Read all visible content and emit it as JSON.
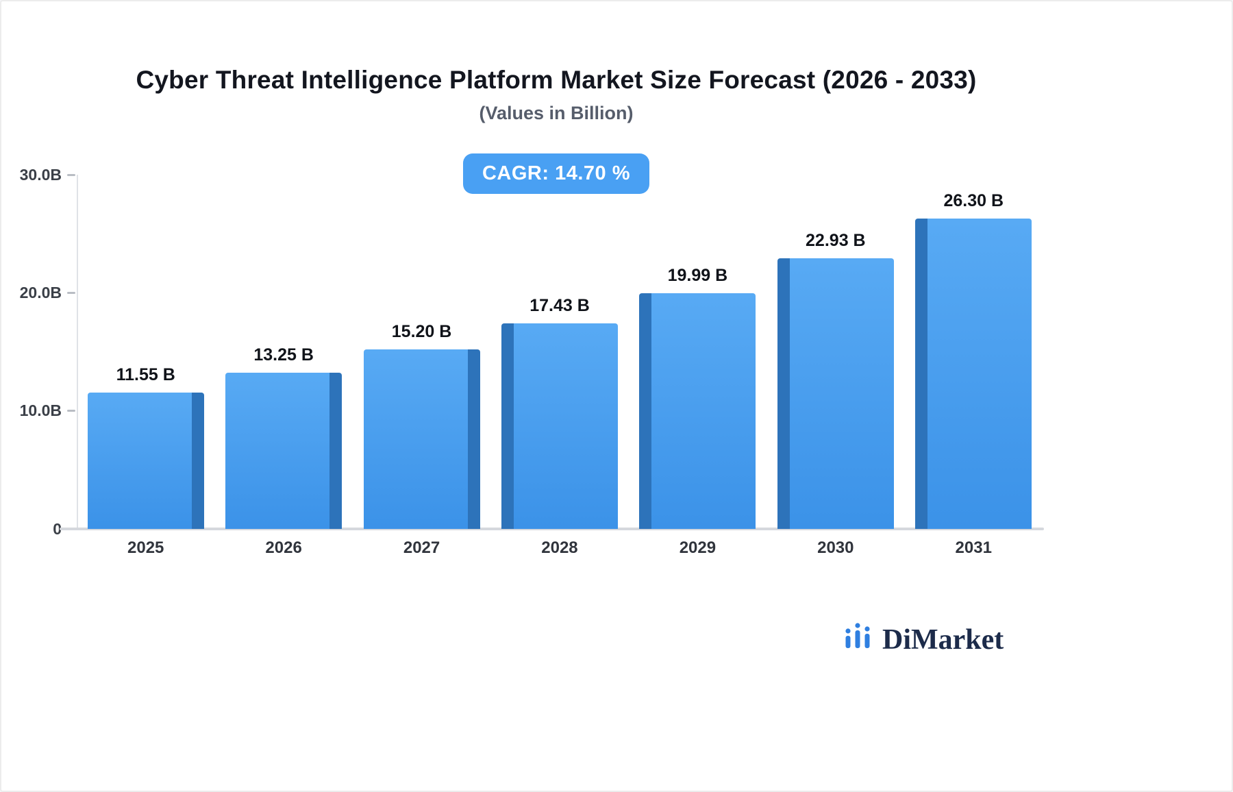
{
  "chart_data": {
    "type": "bar",
    "title": "Cyber Threat Intelligence Platform Market Size Forecast (2026 - 2033)",
    "subtitle": "(Values in Billion)",
    "badge_label": "CAGR: 14.70 %",
    "categories": [
      "2025",
      "2026",
      "2027",
      "2028",
      "2029",
      "2030",
      "2031"
    ],
    "values": [
      11.55,
      13.25,
      15.2,
      17.43,
      19.99,
      22.93,
      26.3
    ],
    "value_labels": [
      "11.55 B",
      "13.25 B",
      "15.20 B",
      "17.43 B",
      "19.99 B",
      "22.93 B",
      "26.30 B"
    ],
    "xlabel": "",
    "ylabel": "",
    "ylim": [
      0,
      30
    ],
    "yticks": [
      {
        "value": 30,
        "label": "30.0B"
      },
      {
        "value": 20,
        "label": "20.0B"
      },
      {
        "value": 10,
        "label": "10.0B"
      },
      {
        "value": 0,
        "label": "0"
      }
    ],
    "grid": false,
    "legend": "none",
    "colors": {
      "bar_front_top": "#58aaf4",
      "bar_front_bottom": "#3b92e8",
      "bar_side": "#2d73ba",
      "badge_bg": "#49a0f3",
      "badge_text": "#ffffff"
    }
  },
  "branding": {
    "logo_text": "DiMarket",
    "logo_text_color": "#1c2b4a",
    "icon_color": "#2f7fe0"
  }
}
